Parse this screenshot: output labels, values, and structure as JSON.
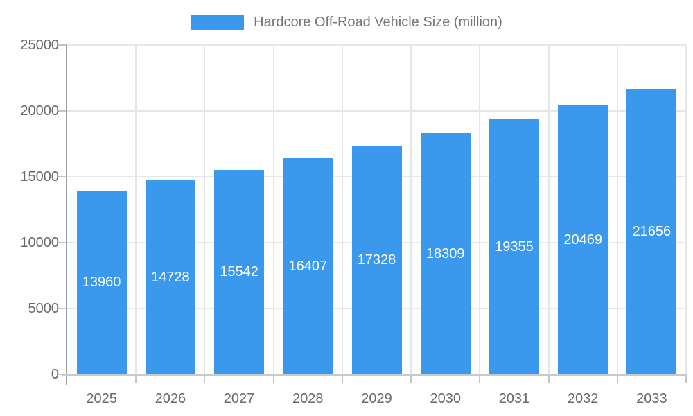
{
  "legend": {
    "label": "Hardcore Off-Road Vehicle Size (million)"
  },
  "colors": {
    "bar": "#3b99ed",
    "grid": "#e6e6e6",
    "tick": "#c4c4c4",
    "yaxis": "#9e9e9e",
    "xaxis": "#c9c9c9",
    "axis-label": "#696969",
    "legend-label": "#757575",
    "value-label": "#ffffff"
  },
  "chart_data": {
    "type": "bar",
    "title": "Hardcore Off-Road Vehicle Size (million)",
    "categories": [
      "2025",
      "2026",
      "2027",
      "2028",
      "2029",
      "2030",
      "2031",
      "2032",
      "2033"
    ],
    "values": [
      13960,
      14728,
      15542,
      16407,
      17328,
      18309,
      19355,
      20469,
      21656
    ],
    "xlabel": "",
    "ylabel": "",
    "ylim": [
      0,
      25000
    ],
    "yticks": [
      0,
      5000,
      10000,
      15000,
      20000,
      25000
    ],
    "grid": true,
    "legend_position": "top-center",
    "value_labels": "inside-center-white"
  }
}
